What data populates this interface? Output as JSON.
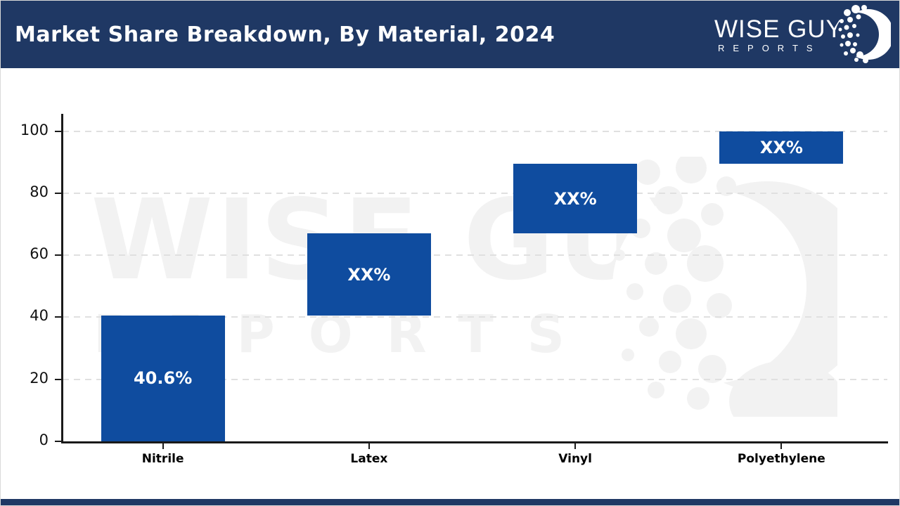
{
  "header": {
    "title": "Market Share Breakdown, By Material, 2024",
    "logo": {
      "line1": "WISE GUY",
      "line2": "REPORTS"
    }
  },
  "watermark": {
    "line1": "WISE GUY",
    "line2": "REPORTS"
  },
  "colors": {
    "header_bg": "#1f3864",
    "footer_bg": "#1f3864",
    "bar": "#0f4c9f",
    "bar_label": "#ffffff",
    "watermark": "#f2f2f2",
    "gridline": "#e0e0e0",
    "axis": "#1a1a1a",
    "page_bg": "#ffffff",
    "border": "#d9d9d9"
  },
  "chart_data": {
    "type": "bar",
    "subtype": "waterfall-cumulative",
    "title": "Market Share Breakdown, By Material, 2024",
    "categories": [
      "Nitrile",
      "Latex",
      "Vinyl",
      "Polyethylene"
    ],
    "segments": [
      {
        "category": "Nitrile",
        "start": 0,
        "end": 40.6,
        "label": "40.6%"
      },
      {
        "category": "Latex",
        "start": 40.6,
        "end": 67,
        "label": "XX%"
      },
      {
        "category": "Vinyl",
        "start": 67,
        "end": 89.5,
        "label": "XX%"
      },
      {
        "category": "Polyethylene",
        "start": 89.5,
        "end": 100,
        "label": "XX%"
      }
    ],
    "yticks": [
      0,
      20,
      40,
      60,
      80,
      100
    ],
    "ylim": [
      0,
      105.6
    ],
    "xlabel": "",
    "ylabel": "",
    "grid": "horizontal-dashed",
    "legend": "none"
  }
}
